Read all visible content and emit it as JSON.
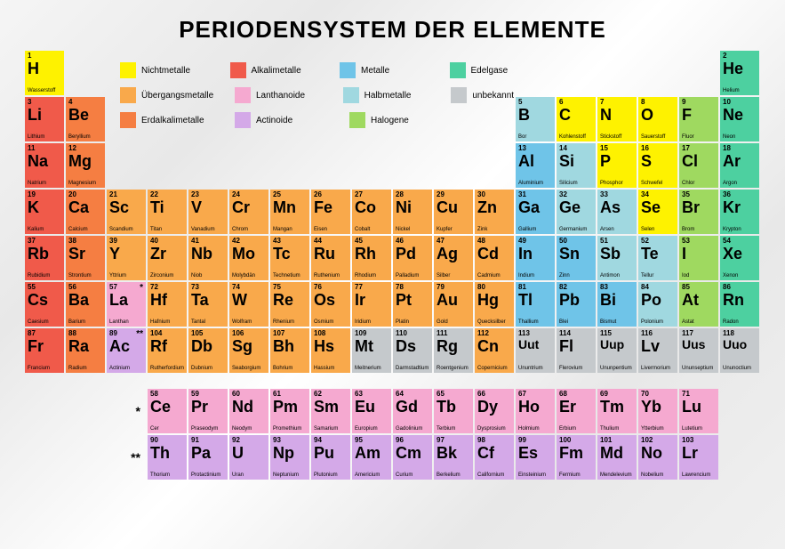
{
  "title": "PERIODENSYSTEM DER ELEMENTE",
  "colors": {
    "nichtmetalle": "#fef200",
    "uebergang": "#f9a94b",
    "erdalkali": "#f57e42",
    "alkali": "#f05a4a",
    "lanthanoide": "#f5a9d0",
    "actinoide": "#d4a9e8",
    "metalle": "#6fc4e8",
    "halbmetalle": "#a0d8e0",
    "halogene": "#9fd960",
    "edelgase": "#4dd0a0",
    "unbekannt": "#c5c9cc"
  },
  "legend": [
    [
      {
        "label": "Nichtmetalle",
        "colorKey": "nichtmetalle"
      },
      {
        "label": "Alkalimetalle",
        "colorKey": "alkali"
      },
      {
        "label": "Metalle",
        "colorKey": "metalle"
      },
      {
        "label": "Edelgase",
        "colorKey": "edelgase"
      }
    ],
    [
      {
        "label": "Übergangsmetalle",
        "colorKey": "uebergang"
      },
      {
        "label": "Lanthanoide",
        "colorKey": "lanthanoide"
      },
      {
        "label": "Halbmetalle",
        "colorKey": "halbmetalle"
      },
      {
        "label": "unbekannt",
        "colorKey": "unbekannt"
      }
    ],
    [
      {
        "label": "Erdalkalimetalle",
        "colorKey": "erdalkali"
      },
      {
        "label": "Actinoide",
        "colorKey": "actinoide"
      },
      {
        "label": "Halogene",
        "colorKey": "halogene"
      }
    ]
  ],
  "elements": [
    {
      "n": 1,
      "s": "H",
      "name": "Wasserstoff",
      "r": 1,
      "c": 1,
      "k": "nichtmetalle"
    },
    {
      "n": 2,
      "s": "He",
      "name": "Helium",
      "r": 1,
      "c": 18,
      "k": "edelgase"
    },
    {
      "n": 3,
      "s": "Li",
      "name": "Lithium",
      "r": 2,
      "c": 1,
      "k": "alkali"
    },
    {
      "n": 4,
      "s": "Be",
      "name": "Beryllium",
      "r": 2,
      "c": 2,
      "k": "erdalkali"
    },
    {
      "n": 5,
      "s": "B",
      "name": "Bor",
      "r": 2,
      "c": 13,
      "k": "halbmetalle"
    },
    {
      "n": 6,
      "s": "C",
      "name": "Kohlenstoff",
      "r": 2,
      "c": 14,
      "k": "nichtmetalle"
    },
    {
      "n": 7,
      "s": "N",
      "name": "Stickstoff",
      "r": 2,
      "c": 15,
      "k": "nichtmetalle"
    },
    {
      "n": 8,
      "s": "O",
      "name": "Sauerstoff",
      "r": 2,
      "c": 16,
      "k": "nichtmetalle"
    },
    {
      "n": 9,
      "s": "F",
      "name": "Fluor",
      "r": 2,
      "c": 17,
      "k": "halogene"
    },
    {
      "n": 10,
      "s": "Ne",
      "name": "Neon",
      "r": 2,
      "c": 18,
      "k": "edelgase"
    },
    {
      "n": 11,
      "s": "Na",
      "name": "Natrium",
      "r": 3,
      "c": 1,
      "k": "alkali"
    },
    {
      "n": 12,
      "s": "Mg",
      "name": "Magnesium",
      "r": 3,
      "c": 2,
      "k": "erdalkali"
    },
    {
      "n": 13,
      "s": "Al",
      "name": "Aluminium",
      "r": 3,
      "c": 13,
      "k": "metalle"
    },
    {
      "n": 14,
      "s": "Si",
      "name": "Silicium",
      "r": 3,
      "c": 14,
      "k": "halbmetalle"
    },
    {
      "n": 15,
      "s": "P",
      "name": "Phosphor",
      "r": 3,
      "c": 15,
      "k": "nichtmetalle"
    },
    {
      "n": 16,
      "s": "S",
      "name": "Schwefel",
      "r": 3,
      "c": 16,
      "k": "nichtmetalle"
    },
    {
      "n": 17,
      "s": "Cl",
      "name": "Chlor",
      "r": 3,
      "c": 17,
      "k": "halogene"
    },
    {
      "n": 18,
      "s": "Ar",
      "name": "Argon",
      "r": 3,
      "c": 18,
      "k": "edelgase"
    },
    {
      "n": 19,
      "s": "K",
      "name": "Kalium",
      "r": 4,
      "c": 1,
      "k": "alkali"
    },
    {
      "n": 20,
      "s": "Ca",
      "name": "Calcium",
      "r": 4,
      "c": 2,
      "k": "erdalkali"
    },
    {
      "n": 21,
      "s": "Sc",
      "name": "Scandium",
      "r": 4,
      "c": 3,
      "k": "uebergang"
    },
    {
      "n": 22,
      "s": "Ti",
      "name": "Titan",
      "r": 4,
      "c": 4,
      "k": "uebergang"
    },
    {
      "n": 23,
      "s": "V",
      "name": "Vanadium",
      "r": 4,
      "c": 5,
      "k": "uebergang"
    },
    {
      "n": 24,
      "s": "Cr",
      "name": "Chrom",
      "r": 4,
      "c": 6,
      "k": "uebergang"
    },
    {
      "n": 25,
      "s": "Mn",
      "name": "Mangan",
      "r": 4,
      "c": 7,
      "k": "uebergang"
    },
    {
      "n": 26,
      "s": "Fe",
      "name": "Eisen",
      "r": 4,
      "c": 8,
      "k": "uebergang"
    },
    {
      "n": 27,
      "s": "Co",
      "name": "Cobalt",
      "r": 4,
      "c": 9,
      "k": "uebergang"
    },
    {
      "n": 28,
      "s": "Ni",
      "name": "Nickel",
      "r": 4,
      "c": 10,
      "k": "uebergang"
    },
    {
      "n": 29,
      "s": "Cu",
      "name": "Kupfer",
      "r": 4,
      "c": 11,
      "k": "uebergang"
    },
    {
      "n": 30,
      "s": "Zn",
      "name": "Zink",
      "r": 4,
      "c": 12,
      "k": "uebergang"
    },
    {
      "n": 31,
      "s": "Ga",
      "name": "Gallium",
      "r": 4,
      "c": 13,
      "k": "metalle"
    },
    {
      "n": 32,
      "s": "Ge",
      "name": "Germanium",
      "r": 4,
      "c": 14,
      "k": "halbmetalle"
    },
    {
      "n": 33,
      "s": "As",
      "name": "Arsen",
      "r": 4,
      "c": 15,
      "k": "halbmetalle"
    },
    {
      "n": 34,
      "s": "Se",
      "name": "Selen",
      "r": 4,
      "c": 16,
      "k": "nichtmetalle"
    },
    {
      "n": 35,
      "s": "Br",
      "name": "Brom",
      "r": 4,
      "c": 17,
      "k": "halogene"
    },
    {
      "n": 36,
      "s": "Kr",
      "name": "Krypton",
      "r": 4,
      "c": 18,
      "k": "edelgase"
    },
    {
      "n": 37,
      "s": "Rb",
      "name": "Rubidium",
      "r": 5,
      "c": 1,
      "k": "alkali"
    },
    {
      "n": 38,
      "s": "Sr",
      "name": "Strontium",
      "r": 5,
      "c": 2,
      "k": "erdalkali"
    },
    {
      "n": 39,
      "s": "Y",
      "name": "Yttrium",
      "r": 5,
      "c": 3,
      "k": "uebergang"
    },
    {
      "n": 40,
      "s": "Zr",
      "name": "Zirconium",
      "r": 5,
      "c": 4,
      "k": "uebergang"
    },
    {
      "n": 41,
      "s": "Nb",
      "name": "Niob",
      "r": 5,
      "c": 5,
      "k": "uebergang"
    },
    {
      "n": 42,
      "s": "Mo",
      "name": "Molybdän",
      "r": 5,
      "c": 6,
      "k": "uebergang"
    },
    {
      "n": 43,
      "s": "Tc",
      "name": "Technetium",
      "r": 5,
      "c": 7,
      "k": "uebergang"
    },
    {
      "n": 44,
      "s": "Ru",
      "name": "Ruthenium",
      "r": 5,
      "c": 8,
      "k": "uebergang"
    },
    {
      "n": 45,
      "s": "Rh",
      "name": "Rhodium",
      "r": 5,
      "c": 9,
      "k": "uebergang"
    },
    {
      "n": 46,
      "s": "Pd",
      "name": "Palladium",
      "r": 5,
      "c": 10,
      "k": "uebergang"
    },
    {
      "n": 47,
      "s": "Ag",
      "name": "Silber",
      "r": 5,
      "c": 11,
      "k": "uebergang"
    },
    {
      "n": 48,
      "s": "Cd",
      "name": "Cadmium",
      "r": 5,
      "c": 12,
      "k": "uebergang"
    },
    {
      "n": 49,
      "s": "In",
      "name": "Indium",
      "r": 5,
      "c": 13,
      "k": "metalle"
    },
    {
      "n": 50,
      "s": "Sn",
      "name": "Zinn",
      "r": 5,
      "c": 14,
      "k": "metalle"
    },
    {
      "n": 51,
      "s": "Sb",
      "name": "Antimon",
      "r": 5,
      "c": 15,
      "k": "halbmetalle"
    },
    {
      "n": 52,
      "s": "Te",
      "name": "Tellur",
      "r": 5,
      "c": 16,
      "k": "halbmetalle"
    },
    {
      "n": 53,
      "s": "I",
      "name": "Iod",
      "r": 5,
      "c": 17,
      "k": "halogene"
    },
    {
      "n": 54,
      "s": "Xe",
      "name": "Xenon",
      "r": 5,
      "c": 18,
      "k": "edelgase"
    },
    {
      "n": 55,
      "s": "Cs",
      "name": "Caesium",
      "r": 6,
      "c": 1,
      "k": "alkali"
    },
    {
      "n": 56,
      "s": "Ba",
      "name": "Barium",
      "r": 6,
      "c": 2,
      "k": "erdalkali"
    },
    {
      "n": 57,
      "s": "La",
      "name": "Lanthan",
      "r": 6,
      "c": 3,
      "k": "lanthanoide",
      "ast": "*"
    },
    {
      "n": 72,
      "s": "Hf",
      "name": "Hafnium",
      "r": 6,
      "c": 4,
      "k": "uebergang"
    },
    {
      "n": 73,
      "s": "Ta",
      "name": "Tantal",
      "r": 6,
      "c": 5,
      "k": "uebergang"
    },
    {
      "n": 74,
      "s": "W",
      "name": "Wolfram",
      "r": 6,
      "c": 6,
      "k": "uebergang"
    },
    {
      "n": 75,
      "s": "Re",
      "name": "Rhenium",
      "r": 6,
      "c": 7,
      "k": "uebergang"
    },
    {
      "n": 76,
      "s": "Os",
      "name": "Osmium",
      "r": 6,
      "c": 8,
      "k": "uebergang"
    },
    {
      "n": 77,
      "s": "Ir",
      "name": "Iridium",
      "r": 6,
      "c": 9,
      "k": "uebergang"
    },
    {
      "n": 78,
      "s": "Pt",
      "name": "Platin",
      "r": 6,
      "c": 10,
      "k": "uebergang"
    },
    {
      "n": 79,
      "s": "Au",
      "name": "Gold",
      "r": 6,
      "c": 11,
      "k": "uebergang"
    },
    {
      "n": 80,
      "s": "Hg",
      "name": "Quecksilber",
      "r": 6,
      "c": 12,
      "k": "uebergang"
    },
    {
      "n": 81,
      "s": "Tl",
      "name": "Thallium",
      "r": 6,
      "c": 13,
      "k": "metalle"
    },
    {
      "n": 82,
      "s": "Pb",
      "name": "Blei",
      "r": 6,
      "c": 14,
      "k": "metalle"
    },
    {
      "n": 83,
      "s": "Bi",
      "name": "Bismut",
      "r": 6,
      "c": 15,
      "k": "metalle"
    },
    {
      "n": 84,
      "s": "Po",
      "name": "Polonium",
      "r": 6,
      "c": 16,
      "k": "halbmetalle"
    },
    {
      "n": 85,
      "s": "At",
      "name": "Astat",
      "r": 6,
      "c": 17,
      "k": "halogene"
    },
    {
      "n": 86,
      "s": "Rn",
      "name": "Radon",
      "r": 6,
      "c": 18,
      "k": "edelgase"
    },
    {
      "n": 87,
      "s": "Fr",
      "name": "Francium",
      "r": 7,
      "c": 1,
      "k": "alkali"
    },
    {
      "n": 88,
      "s": "Ra",
      "name": "Radium",
      "r": 7,
      "c": 2,
      "k": "erdalkali"
    },
    {
      "n": 89,
      "s": "Ac",
      "name": "Actinium",
      "r": 7,
      "c": 3,
      "k": "actinoide",
      "ast": "**"
    },
    {
      "n": 104,
      "s": "Rf",
      "name": "Rutherfordium",
      "r": 7,
      "c": 4,
      "k": "uebergang"
    },
    {
      "n": 105,
      "s": "Db",
      "name": "Dubnium",
      "r": 7,
      "c": 5,
      "k": "uebergang"
    },
    {
      "n": 106,
      "s": "Sg",
      "name": "Seaborgium",
      "r": 7,
      "c": 6,
      "k": "uebergang"
    },
    {
      "n": 107,
      "s": "Bh",
      "name": "Bohrium",
      "r": 7,
      "c": 7,
      "k": "uebergang"
    },
    {
      "n": 108,
      "s": "Hs",
      "name": "Hassium",
      "r": 7,
      "c": 8,
      "k": "uebergang"
    },
    {
      "n": 109,
      "s": "Mt",
      "name": "Meitnerium",
      "r": 7,
      "c": 9,
      "k": "unbekannt"
    },
    {
      "n": 110,
      "s": "Ds",
      "name": "Darmstadtium",
      "r": 7,
      "c": 10,
      "k": "unbekannt"
    },
    {
      "n": 111,
      "s": "Rg",
      "name": "Roentgenium",
      "r": 7,
      "c": 11,
      "k": "unbekannt"
    },
    {
      "n": 112,
      "s": "Cn",
      "name": "Copernicium",
      "r": 7,
      "c": 12,
      "k": "uebergang"
    },
    {
      "n": 113,
      "s": "Uut",
      "name": "Ununtrium",
      "r": 7,
      "c": 13,
      "k": "unbekannt"
    },
    {
      "n": 114,
      "s": "Fl",
      "name": "Flerovium",
      "r": 7,
      "c": 14,
      "k": "unbekannt"
    },
    {
      "n": 115,
      "s": "Uup",
      "name": "Ununpentium",
      "r": 7,
      "c": 15,
      "k": "unbekannt"
    },
    {
      "n": 116,
      "s": "Lv",
      "name": "Livermorium",
      "r": 7,
      "c": 16,
      "k": "unbekannt"
    },
    {
      "n": 117,
      "s": "Uus",
      "name": "Ununseptium",
      "r": 7,
      "c": 17,
      "k": "unbekannt"
    },
    {
      "n": 118,
      "s": "Uuo",
      "name": "Ununoctium",
      "r": 7,
      "c": 18,
      "k": "unbekannt"
    }
  ],
  "lanthanides": [
    {
      "n": 58,
      "s": "Ce",
      "name": "Cer",
      "k": "lanthanoide"
    },
    {
      "n": 59,
      "s": "Pr",
      "name": "Praseodym",
      "k": "lanthanoide"
    },
    {
      "n": 60,
      "s": "Nd",
      "name": "Neodym",
      "k": "lanthanoide"
    },
    {
      "n": 61,
      "s": "Pm",
      "name": "Promethium",
      "k": "lanthanoide"
    },
    {
      "n": 62,
      "s": "Sm",
      "name": "Samarium",
      "k": "lanthanoide"
    },
    {
      "n": 63,
      "s": "Eu",
      "name": "Europium",
      "k": "lanthanoide"
    },
    {
      "n": 64,
      "s": "Gd",
      "name": "Gadolinium",
      "k": "lanthanoide"
    },
    {
      "n": 65,
      "s": "Tb",
      "name": "Terbium",
      "k": "lanthanoide"
    },
    {
      "n": 66,
      "s": "Dy",
      "name": "Dysprosium",
      "k": "lanthanoide"
    },
    {
      "n": 67,
      "s": "Ho",
      "name": "Holmium",
      "k": "lanthanoide"
    },
    {
      "n": 68,
      "s": "Er",
      "name": "Erbium",
      "k": "lanthanoide"
    },
    {
      "n": 69,
      "s": "Tm",
      "name": "Thulium",
      "k": "lanthanoide"
    },
    {
      "n": 70,
      "s": "Yb",
      "name": "Ytterbium",
      "k": "lanthanoide"
    },
    {
      "n": 71,
      "s": "Lu",
      "name": "Lutetium",
      "k": "lanthanoide"
    }
  ],
  "actinides": [
    {
      "n": 90,
      "s": "Th",
      "name": "Thorium",
      "k": "actinoide"
    },
    {
      "n": 91,
      "s": "Pa",
      "name": "Protactinium",
      "k": "actinoide"
    },
    {
      "n": 92,
      "s": "U",
      "name": "Uran",
      "k": "actinoide"
    },
    {
      "n": 93,
      "s": "Np",
      "name": "Neptunium",
      "k": "actinoide"
    },
    {
      "n": 94,
      "s": "Pu",
      "name": "Plutonium",
      "k": "actinoide"
    },
    {
      "n": 95,
      "s": "Am",
      "name": "Americium",
      "k": "actinoide"
    },
    {
      "n": 96,
      "s": "Cm",
      "name": "Curium",
      "k": "actinoide"
    },
    {
      "n": 97,
      "s": "Bk",
      "name": "Berkelium",
      "k": "actinoide"
    },
    {
      "n": 98,
      "s": "Cf",
      "name": "Californium",
      "k": "actinoide"
    },
    {
      "n": 99,
      "s": "Es",
      "name": "Einsteinium",
      "k": "actinoide"
    },
    {
      "n": 100,
      "s": "Fm",
      "name": "Fermium",
      "k": "actinoide"
    },
    {
      "n": 101,
      "s": "Md",
      "name": "Mendelevium",
      "k": "actinoide"
    },
    {
      "n": 102,
      "s": "No",
      "name": "Nobelium",
      "k": "actinoide"
    },
    {
      "n": 103,
      "s": "Lr",
      "name": "Lawrencium",
      "k": "actinoide"
    }
  ],
  "markers": {
    "lan": "*",
    "act": "**"
  }
}
